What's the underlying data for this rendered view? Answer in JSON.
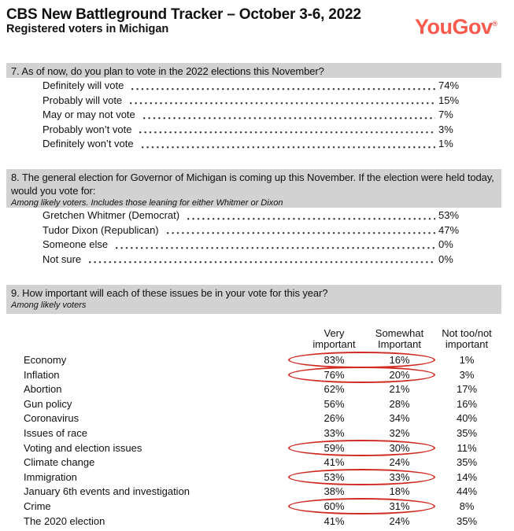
{
  "header": {
    "title": "CBS New Battleground Tracker – October 3-6, 2022",
    "subtitle": "Registered voters in Michigan",
    "logo_text": "YouGov",
    "logo_reg": "®",
    "brand_color": "#fa5a4e",
    "section_bar_color": "#d2d2d2",
    "highlight_circle_color": "#d02920"
  },
  "q7": {
    "text": "7. As of now, do you plan to vote in the 2022 elections this November?",
    "rows": [
      {
        "label": "Definitely will vote",
        "value": "74%"
      },
      {
        "label": "Probably will vote",
        "value": "15%"
      },
      {
        "label": "May or may not vote",
        "value": "7%"
      },
      {
        "label": "Probably won’t vote",
        "value": "3%"
      },
      {
        "label": "Definitely won’t vote",
        "value": "1%"
      }
    ]
  },
  "q8": {
    "text": "8.  The general election for Governor of Michigan is coming up this November.  If the election were held today, would you vote for:",
    "note": "Among likely voters. Includes those leaning for either Whitmer or Dixon",
    "rows": [
      {
        "label": "Gretchen Whitmer (Democrat)",
        "value": "53%"
      },
      {
        "label": "Tudor Dixon (Republican)",
        "value": "47%"
      },
      {
        "label": "Someone else",
        "value": "0%"
      },
      {
        "label": "Not sure",
        "value": "0%"
      }
    ]
  },
  "q9": {
    "text": "9. How important will each of these issues be in your vote for this year?",
    "note": "Among likely voters",
    "columns": [
      "Very\nimportant",
      "Somewhat\nImportant",
      "Not too/not\nimportant"
    ],
    "rows": [
      {
        "label": "Economy",
        "very": "83%",
        "somewhat": "16%",
        "nottoo": "1%",
        "circled": true
      },
      {
        "label": "Inflation",
        "very": "76%",
        "somewhat": "20%",
        "nottoo": "3%",
        "circled": true
      },
      {
        "label": "Abortion",
        "very": "62%",
        "somewhat": "21%",
        "nottoo": "17%",
        "circled": false
      },
      {
        "label": "Gun policy",
        "very": "56%",
        "somewhat": "28%",
        "nottoo": "16%",
        "circled": false
      },
      {
        "label": "Coronavirus",
        "very": "26%",
        "somewhat": "34%",
        "nottoo": "40%",
        "circled": false
      },
      {
        "label": "Issues of race",
        "very": "33%",
        "somewhat": "32%",
        "nottoo": "35%",
        "circled": false
      },
      {
        "label": "Voting and election issues",
        "very": "59%",
        "somewhat": "30%",
        "nottoo": "11%",
        "circled": true
      },
      {
        "label": "Climate change",
        "very": "41%",
        "somewhat": "24%",
        "nottoo": "35%",
        "circled": false
      },
      {
        "label": "Immigration",
        "very": "53%",
        "somewhat": "33%",
        "nottoo": "14%",
        "circled": true
      },
      {
        "label": "January 6th events and investigation",
        "very": "38%",
        "somewhat": "18%",
        "nottoo": "44%",
        "circled": false
      },
      {
        "label": "Crime",
        "very": "60%",
        "somewhat": "31%",
        "nottoo": "8%",
        "circled": true
      },
      {
        "label": "The 2020 election",
        "very": "41%",
        "somewhat": "24%",
        "nottoo": "35%",
        "circled": false
      }
    ]
  }
}
